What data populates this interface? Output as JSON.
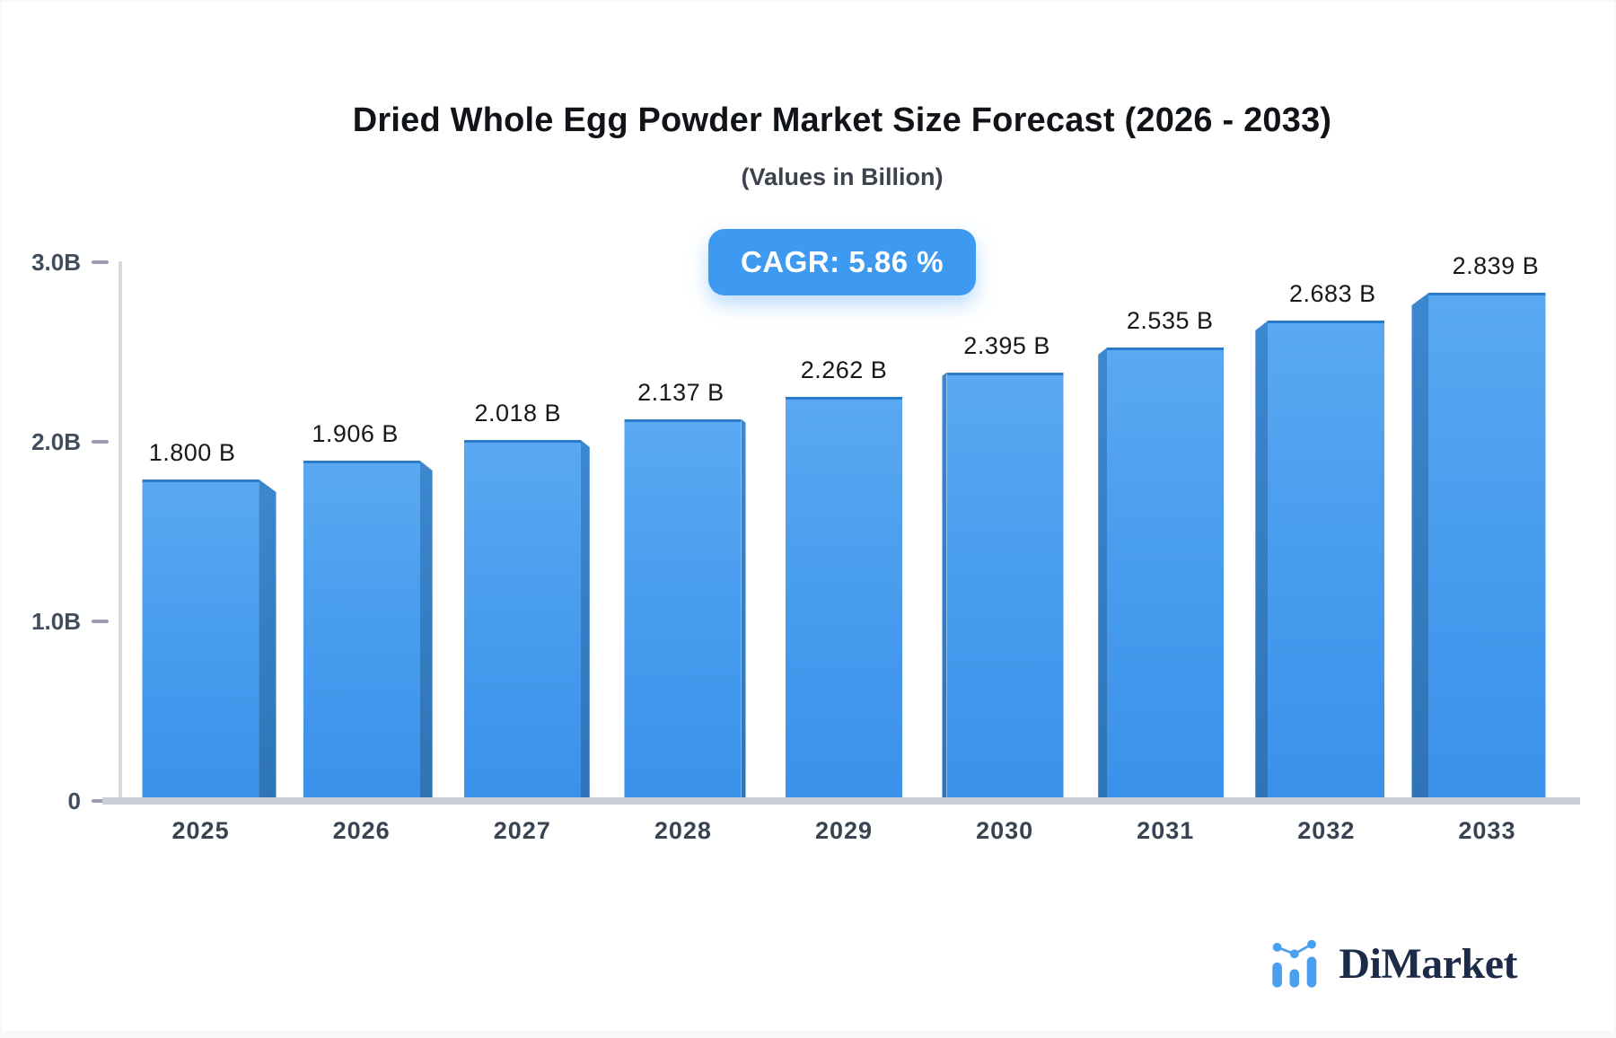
{
  "page": {
    "background": "#f7f8fa",
    "card_background": "#ffffff"
  },
  "header": {
    "title": "Dried Whole Egg Powder Market Size Forecast (2026 - 2033)",
    "subtitle": "(Values in Billion)"
  },
  "badge": {
    "label": "CAGR: 5.86 %",
    "background": "#3d9af0",
    "text_color": "#ffffff"
  },
  "chart_data": {
    "type": "bar",
    "title": "Dried Whole Egg Powder Market Size Forecast (2026 - 2033)",
    "subtitle": "(Values in Billion)",
    "annotation": "CAGR: 5.86 %",
    "categories": [
      "2025",
      "2026",
      "2027",
      "2028",
      "2029",
      "2030",
      "2031",
      "2032",
      "2033"
    ],
    "values": [
      1.8,
      1.906,
      2.018,
      2.137,
      2.262,
      2.395,
      2.535,
      2.683,
      2.839
    ],
    "value_labels": [
      "1.800 B",
      "1.906 B",
      "2.018 B",
      "2.137 B",
      "2.262 B",
      "2.395 B",
      "2.535 B",
      "2.683 B",
      "2.839 B"
    ],
    "unit": "Billion",
    "xlabel": "",
    "ylabel": "",
    "ylim": [
      0,
      3.0
    ],
    "ytick_labels": [
      "0",
      "1.0B",
      "2.0B",
      "3.0B"
    ],
    "grid": false,
    "legend": false,
    "style": "3d-perspective-bars",
    "colors": {
      "bar_face_top": "#5aa8f1",
      "bar_face_bottom": "#3b91e9",
      "bar_top_edge": "#2a7ccb",
      "bar_side": "#2e74b6",
      "axis": "#cbd0d8",
      "tick_text": "#414c5c",
      "value_text": "#15181c"
    }
  },
  "logo": {
    "brand": "DiMarket",
    "icon": "bar-line-chart-icon",
    "icon_color": "#4aa0ef",
    "text_color": "#1c2b47"
  }
}
